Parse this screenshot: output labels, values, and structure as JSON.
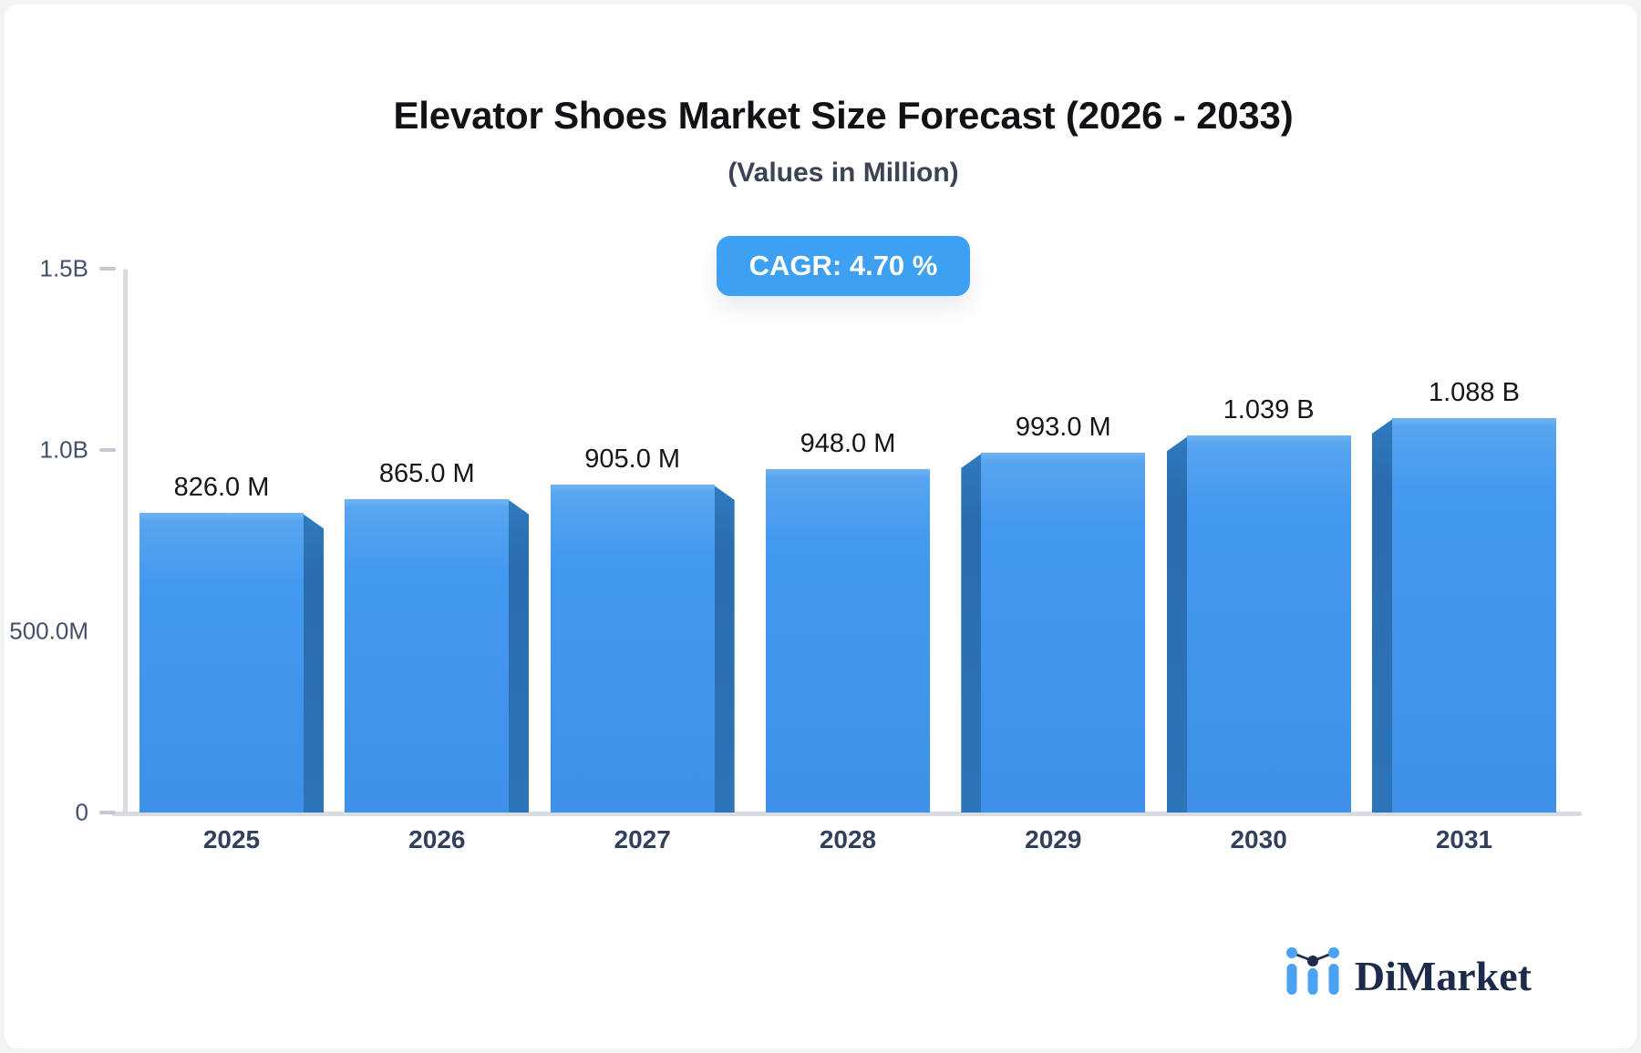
{
  "chart": {
    "accent_color": "#3da0f2",
    "bar_color": "#4197ef",
    "bar_side_color": "#2c72b7",
    "axis_color": "#d9dce1"
  },
  "chart_data": {
    "type": "bar",
    "title": "Elevator Shoes Market Size Forecast (2026 - 2033)",
    "subtitle": "(Values in Million)",
    "annotation": "CAGR: 4.70 %",
    "categories": [
      "2025",
      "2026",
      "2027",
      "2028",
      "2029",
      "2030",
      "2031"
    ],
    "values_millions": [
      826,
      865,
      905,
      948,
      993,
      1039,
      1088
    ],
    "value_labels": [
      "826.0 M",
      "865.0 M",
      "905.0 M",
      "948.0 M",
      "993.0 M",
      "1.039 B",
      "1.088 B"
    ],
    "bar_sides": [
      "right",
      "right",
      "right",
      "none",
      "left",
      "left",
      "left"
    ],
    "grid": false,
    "legend": false,
    "xlabel": "",
    "ylabel": "",
    "y_axis": {
      "max_millions": 1500,
      "ticks": [
        {
          "label": "1.5B",
          "value_millions": 1500,
          "dash": true
        },
        {
          "label": "1.0B",
          "value_millions": 1000,
          "dash": true
        },
        {
          "label": "500.0M",
          "value_millions": 500,
          "dash": false
        },
        {
          "label": "0",
          "value_millions": 0,
          "dash": true
        }
      ]
    }
  },
  "logo": {
    "text": "DiMarket",
    "icon_blue": "#4aa2f5",
    "icon_navy": "#1d2b4a"
  }
}
